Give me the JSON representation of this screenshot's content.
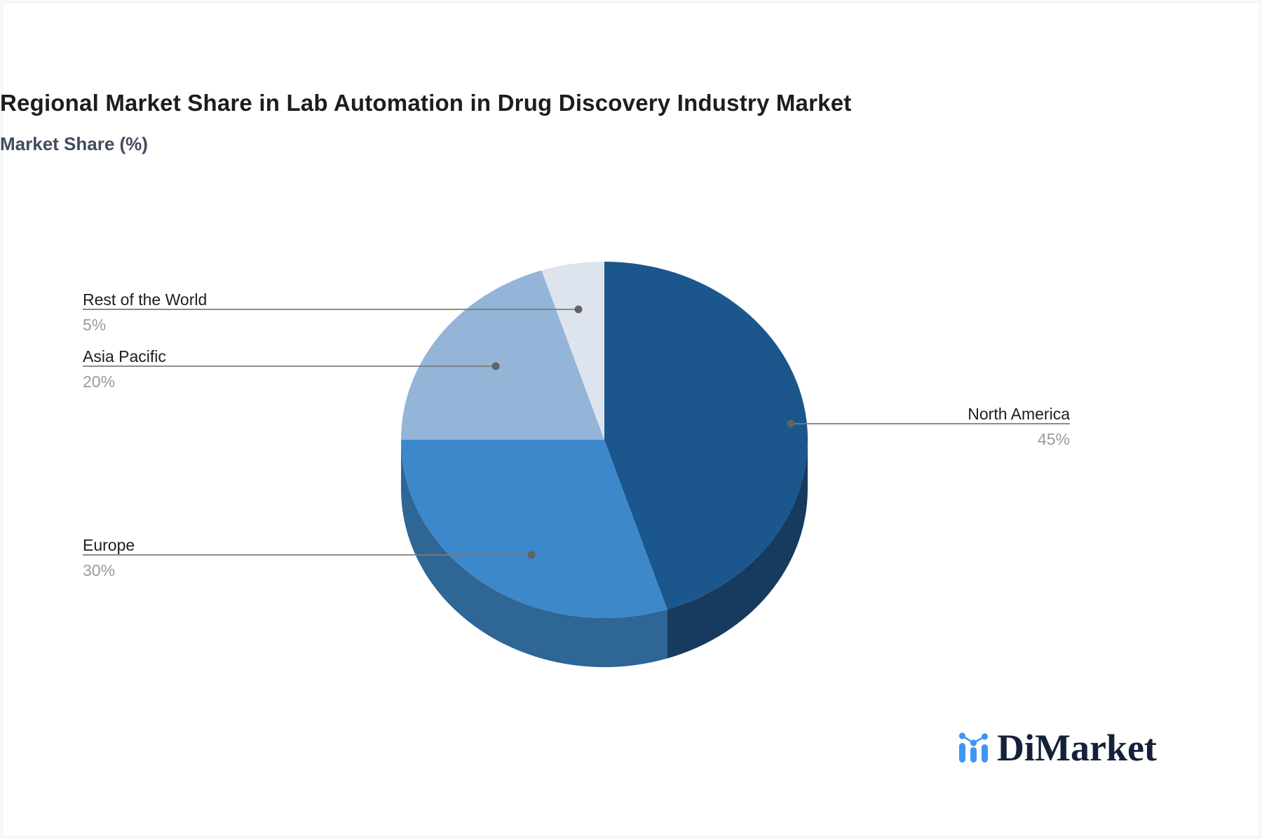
{
  "page": {
    "background": "#ffffff"
  },
  "header": {
    "title": "Regional Market Share in Lab Automation in Drug Discovery Industry Market",
    "subtitle": "Market Share (%)",
    "title_color": "#1b1d21",
    "subtitle_color": "#424c5c"
  },
  "chart_data": {
    "type": "pie",
    "title": "Regional Market Share in Lab Automation in Drug Discovery Industry Market",
    "subtitle": "Market Share (%)",
    "unit": "%",
    "effect": "3d",
    "start_angle": "12-oclock",
    "direction": "clockwise",
    "slices": [
      {
        "label": "North America",
        "value": 45,
        "display": "45%",
        "color": "#1b578c",
        "side_color": "#173a5f"
      },
      {
        "label": "Europe",
        "value": 30,
        "display": "30%",
        "color": "#3c88cb",
        "side_color": "#2e6695"
      },
      {
        "label": "Asia Pacific",
        "value": 20,
        "display": "20%",
        "color": "#94b4d8",
        "side_color": "#7f9cbc"
      },
      {
        "label": "Rest of the World",
        "value": 5,
        "display": "5%",
        "color": "#dde4ee",
        "side_color": "#c3ccd9"
      }
    ],
    "label_name_color": "#1e1e1e",
    "label_value_color": "#9b9b9b",
    "leader_line_color": "#7c7c7c",
    "leader_dot_color": "#636363",
    "legend": "none",
    "grid": "off"
  },
  "footer": {
    "brand": "DiMarket",
    "brand_color": "#15213a",
    "icon": "bar-chart-trend-icon",
    "icon_color": "#3e96f4"
  }
}
